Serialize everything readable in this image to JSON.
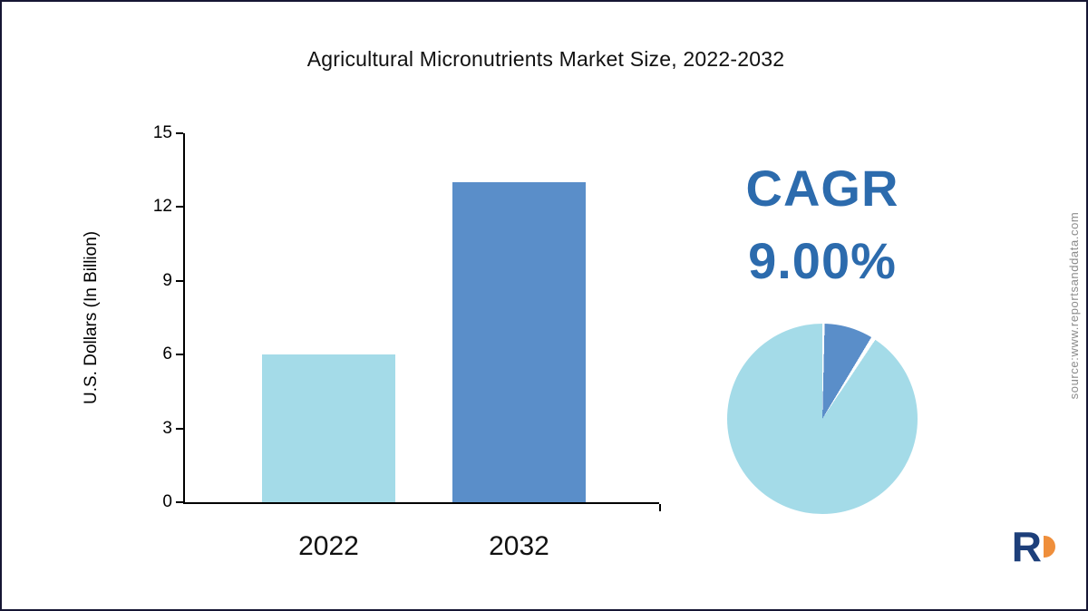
{
  "title": "Agricultural Micronutrients Market Size, 2022-2032",
  "chart_data": {
    "type": "bar",
    "title": "Agricultural Micronutrients Market Size, 2022-2032",
    "categories": [
      "2022",
      "2032"
    ],
    "values": [
      6,
      13
    ],
    "xlabel": "",
    "ylabel": "U.S. Dollars (In Billion)",
    "ylim": [
      0,
      15
    ],
    "yticks": [
      0,
      3,
      6,
      9,
      12,
      15
    ],
    "bar_colors": [
      "#a4dbe8",
      "#5a8ec9"
    ],
    "grid": false,
    "legend": "none"
  },
  "cagr": {
    "label": "CAGR",
    "value": "9.00%",
    "percent": 9,
    "color": "#2c6bad"
  },
  "pie": {
    "type": "pie",
    "slice_percent": 9,
    "slice_color": "#5a8ec9",
    "base_color": "#a4dbe8"
  },
  "source": "source:www.reportsanddata.com",
  "logo": {
    "letter": "R",
    "accent_color": "#ef8f3c"
  }
}
